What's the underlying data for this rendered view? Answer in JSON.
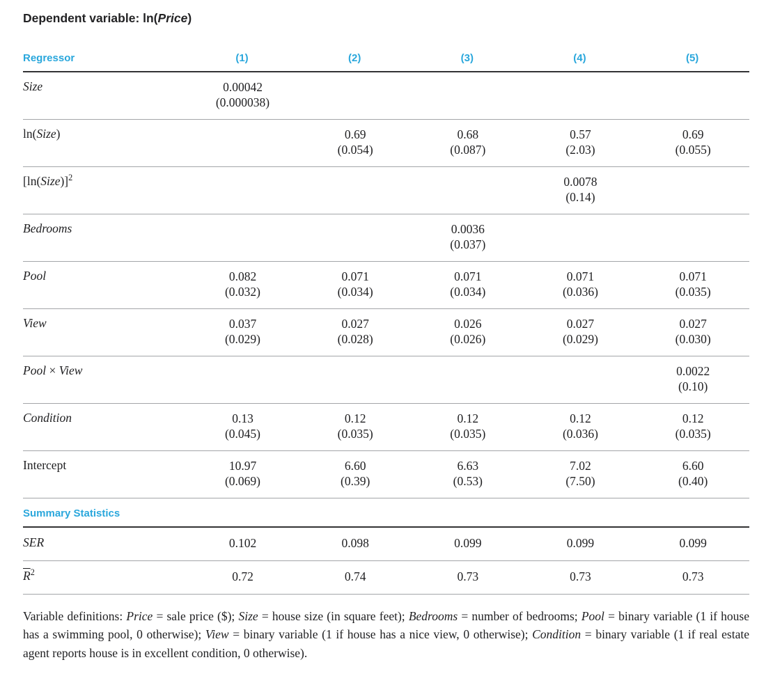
{
  "theme": {
    "accent": "#2aa7dc",
    "rule_heavy": "#323234",
    "rule_light": "#a3a5a8",
    "ink": "#1f1f21"
  },
  "title": [
    {
      "t": "Dependent variable: ln(",
      "s": "r"
    },
    {
      "t": "Price",
      "s": "i"
    },
    {
      "t": ")",
      "s": "r"
    }
  ],
  "header": {
    "regressor": "Regressor",
    "columns": [
      "(1)",
      "(2)",
      "(3)",
      "(4)",
      "(5)"
    ]
  },
  "rows": [
    {
      "label": [
        {
          "t": "Size",
          "s": "i"
        }
      ],
      "cells": [
        {
          "coef": "0.00042",
          "se": "(0.000038)"
        },
        null,
        null,
        null,
        null
      ]
    },
    {
      "label": [
        {
          "t": "ln(",
          "s": "r"
        },
        {
          "t": "Size",
          "s": "i"
        },
        {
          "t": ")",
          "s": "r"
        }
      ],
      "cells": [
        null,
        {
          "coef": "0.69",
          "se": "(0.054)"
        },
        {
          "coef": "0.68",
          "se": "(0.087)"
        },
        {
          "coef": "0.57",
          "se": "(2.03)"
        },
        {
          "coef": "0.69",
          "se": "(0.055)"
        }
      ]
    },
    {
      "label": [
        {
          "t": "[ln(",
          "s": "r"
        },
        {
          "t": "Size",
          "s": "i"
        },
        {
          "t": ")]",
          "s": "r"
        },
        {
          "t": "2",
          "s": "sup"
        }
      ],
      "cells": [
        null,
        null,
        null,
        {
          "coef": "0.0078",
          "se": "(0.14)"
        },
        null
      ]
    },
    {
      "label": [
        {
          "t": "Bedrooms",
          "s": "i"
        }
      ],
      "cells": [
        null,
        null,
        {
          "coef": "0.0036",
          "se": "(0.037)"
        },
        null,
        null
      ]
    },
    {
      "label": [
        {
          "t": "Pool",
          "s": "i"
        }
      ],
      "cells": [
        {
          "coef": "0.082",
          "se": "(0.032)"
        },
        {
          "coef": "0.071",
          "se": "(0.034)"
        },
        {
          "coef": "0.071",
          "se": "(0.034)"
        },
        {
          "coef": "0.071",
          "se": "(0.036)"
        },
        {
          "coef": "0.071",
          "se": "(0.035)"
        }
      ]
    },
    {
      "label": [
        {
          "t": "View",
          "s": "i"
        }
      ],
      "cells": [
        {
          "coef": "0.037",
          "se": "(0.029)"
        },
        {
          "coef": "0.027",
          "se": "(0.028)"
        },
        {
          "coef": "0.026",
          "se": "(0.026)"
        },
        {
          "coef": "0.027",
          "se": "(0.029)"
        },
        {
          "coef": "0.027",
          "se": "(0.030)"
        }
      ]
    },
    {
      "label": [
        {
          "t": "Pool",
          "s": "i"
        },
        {
          "t": " × ",
          "s": "r"
        },
        {
          "t": "View",
          "s": "i"
        }
      ],
      "cells": [
        null,
        null,
        null,
        null,
        {
          "coef": "0.0022",
          "se": "(0.10)"
        }
      ]
    },
    {
      "label": [
        {
          "t": "Condition",
          "s": "i"
        }
      ],
      "cells": [
        {
          "coef": "0.13",
          "se": "(0.045)"
        },
        {
          "coef": "0.12",
          "se": "(0.035)"
        },
        {
          "coef": "0.12",
          "se": "(0.035)"
        },
        {
          "coef": "0.12",
          "se": "(0.036)"
        },
        {
          "coef": "0.12",
          "se": "(0.035)"
        }
      ]
    },
    {
      "label": [
        {
          "t": "Intercept",
          "s": "r"
        }
      ],
      "cells": [
        {
          "coef": "10.97",
          "se": "(0.069)"
        },
        {
          "coef": "6.60",
          "se": "(0.39)"
        },
        {
          "coef": "6.63",
          "se": "(0.53)"
        },
        {
          "coef": "7.02",
          "se": "(7.50)"
        },
        {
          "coef": "6.60",
          "se": "(0.40)"
        }
      ]
    }
  ],
  "summary": {
    "label": "Summary Statistics",
    "rows": [
      {
        "label": [
          {
            "t": "SER",
            "s": "i"
          }
        ],
        "values": [
          "0.102",
          "0.098",
          "0.099",
          "0.099",
          "0.099"
        ]
      },
      {
        "label": [
          {
            "t": "R",
            "s": "iol"
          },
          {
            "t": "2",
            "s": "sup"
          }
        ],
        "values": [
          "0.72",
          "0.74",
          "0.73",
          "0.73",
          "0.73"
        ]
      }
    ]
  },
  "footnote": [
    {
      "t": "Variable definitions: ",
      "s": "r"
    },
    {
      "t": "Price",
      "s": "i"
    },
    {
      "t": " = sale price ($); ",
      "s": "r"
    },
    {
      "t": "Size",
      "s": "i"
    },
    {
      "t": " = house size (in square feet); ",
      "s": "r"
    },
    {
      "t": "Bedrooms",
      "s": "i"
    },
    {
      "t": " = number of bedrooms; ",
      "s": "r"
    },
    {
      "t": "Pool",
      "s": "i"
    },
    {
      "t": " = binary variable (1 if house has a swimming pool, 0 otherwise); ",
      "s": "r"
    },
    {
      "t": "View",
      "s": "i"
    },
    {
      "t": " = binary variable (1 if house has a nice view, 0 otherwise); ",
      "s": "r"
    },
    {
      "t": "Condition",
      "s": "i"
    },
    {
      "t": " = binary variable (1 if real estate agent reports house is in excellent condition, 0 otherwise).",
      "s": "r"
    }
  ]
}
